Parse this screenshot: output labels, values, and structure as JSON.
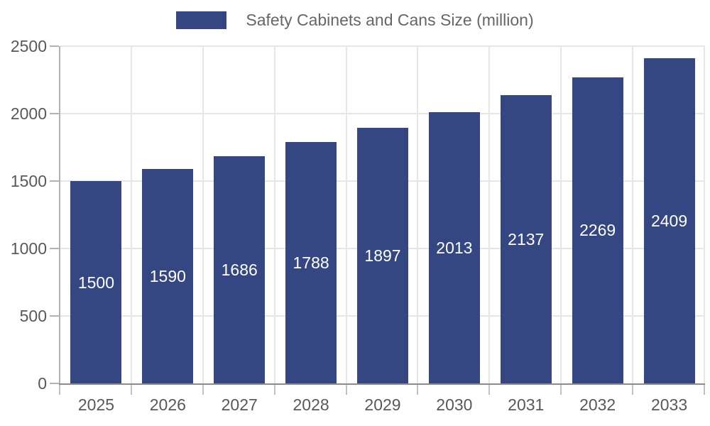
{
  "chart_data": {
    "type": "bar",
    "title": "Safety Cabinets and Cans Size (million)",
    "categories": [
      "2025",
      "2026",
      "2027",
      "2028",
      "2029",
      "2030",
      "2031",
      "2032",
      "2033"
    ],
    "values": [
      1500,
      1590,
      1686,
      1788,
      1897,
      2013,
      2137,
      2269,
      2409
    ],
    "xlabel": "",
    "ylabel": "",
    "ylim": [
      0,
      2500
    ],
    "yticks": [
      0,
      500,
      1000,
      1500,
      2000,
      2500
    ],
    "grid": true,
    "legend_position": "top-center",
    "bar_color": "#354782",
    "bar_label_color": "#ffffff",
    "axis_text_color": "#595959",
    "legend_text_color": "#666666",
    "gridline_color": "#e6e6e6"
  }
}
